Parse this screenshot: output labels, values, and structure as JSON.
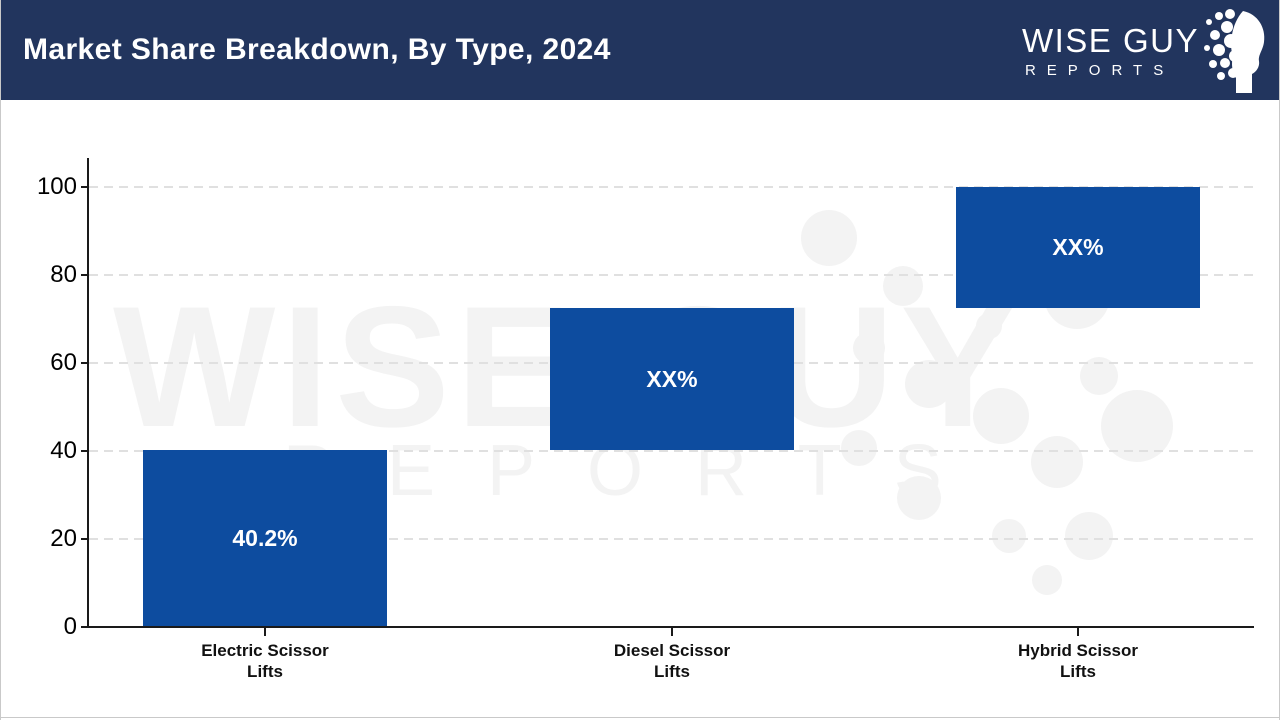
{
  "header": {
    "title": "Market Share Breakdown, By Type, 2024",
    "bg_color": "#22355e",
    "logo": {
      "line1": "WISE GUY",
      "line2": "REPORTS"
    }
  },
  "watermark": {
    "line1": "WISE GUY",
    "line2": "REPORTS"
  },
  "chart_data": {
    "type": "bar",
    "subtype": "waterfall",
    "title": "Market Share Breakdown, By Type, 2024",
    "categories": [
      "Electric Scissor\nLifts",
      "Diesel Scissor\nLifts",
      "Hybrid Scissor\nLifts"
    ],
    "bars": [
      {
        "category": "Electric Scissor Lifts",
        "start": 0,
        "end": 40.2,
        "value_label": "40.2%"
      },
      {
        "category": "Diesel Scissor Lifts",
        "start": 40.2,
        "end": 72.5,
        "value_label": "XX%"
      },
      {
        "category": "Hybrid Scissor Lifts",
        "start": 72.5,
        "end": 100,
        "value_label": "XX%"
      }
    ],
    "yticks": [
      0,
      20,
      40,
      60,
      80,
      100
    ],
    "ylim": [
      0,
      106.6
    ],
    "xlabel": "",
    "ylabel": "",
    "grid": "horizontal-dashed",
    "legend": "none",
    "bar_color": "#0d4c9f",
    "bar_label_color": "#ffffff",
    "axis_color": "#1a1a1a",
    "grid_color": "#e0e0e0",
    "tick_label_color": "#000000"
  }
}
